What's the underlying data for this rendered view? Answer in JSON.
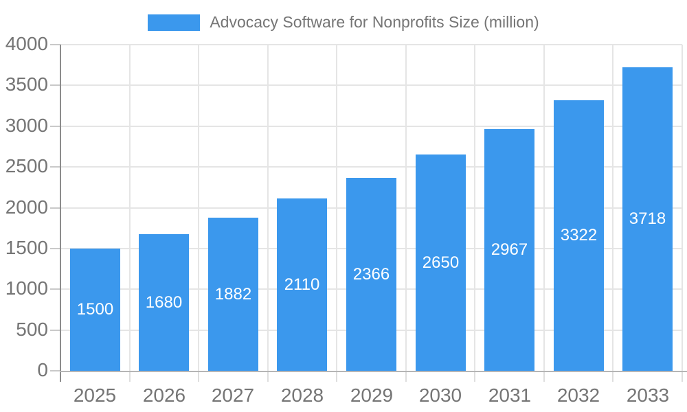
{
  "chart_data": {
    "type": "bar",
    "title": "Advocacy Software for Nonprofits Size (million)",
    "legend_entries": [
      "Advocacy Software for Nonprofits Size (million)"
    ],
    "legend_position": "top-center",
    "categories": [
      "2025",
      "2026",
      "2027",
      "2028",
      "2029",
      "2030",
      "2031",
      "2032",
      "2033"
    ],
    "values": [
      1500,
      1680,
      1882,
      2110,
      2366,
      2650,
      2967,
      3322,
      3718
    ],
    "xlabel": "",
    "ylabel": "",
    "ylim": [
      0,
      4000
    ],
    "y_ticks": [
      0,
      500,
      1000,
      1500,
      2000,
      2500,
      3000,
      3500,
      4000
    ],
    "grid": "horizontal-and-vertical",
    "bar_color": "#3b98ed",
    "value_label_color": "#ffffff",
    "axis_text_color": "#757575",
    "gridline_color": "#e5e5e5"
  }
}
